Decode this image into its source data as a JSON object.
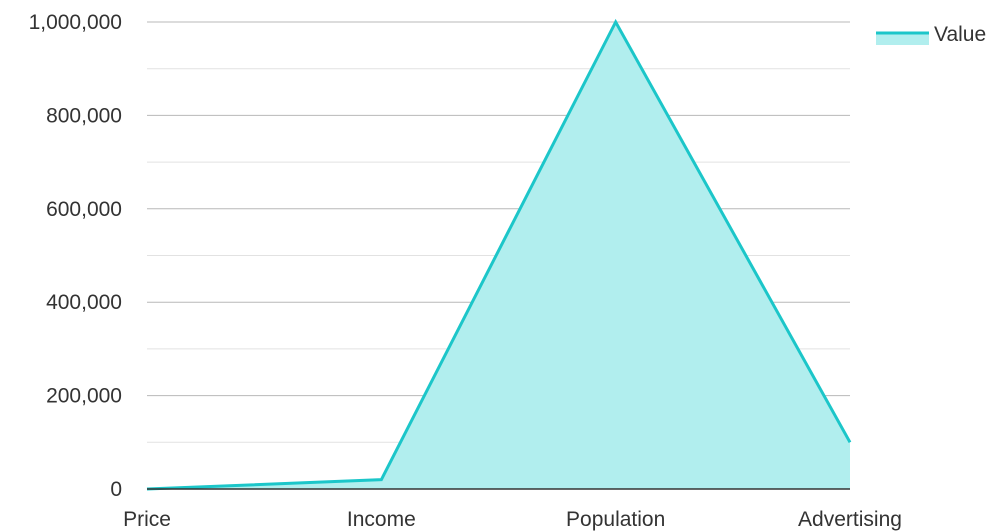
{
  "chart_data": {
    "type": "area",
    "categories": [
      "Price",
      "Income",
      "Population",
      "Advertising"
    ],
    "series": [
      {
        "name": "Value",
        "values": [
          0,
          20000,
          1000000,
          100000
        ],
        "color": "#1cc6c9",
        "fill": "#b1eeee"
      }
    ],
    "ylim": [
      0,
      1000000
    ],
    "y_ticks": [
      0,
      200000,
      400000,
      600000,
      800000,
      1000000
    ],
    "y_tick_labels": [
      "0",
      "200,000",
      "400,000",
      "600,000",
      "800,000",
      "1,000,000"
    ],
    "y_minor_ticks": [
      100000,
      300000,
      500000,
      700000,
      900000
    ],
    "grid": true,
    "legend": {
      "position": "top-right",
      "label": "Value"
    },
    "colors": {
      "major_grid": "#b8b8b8",
      "minor_grid": "#e2e2e2",
      "axis": "#333333"
    }
  }
}
